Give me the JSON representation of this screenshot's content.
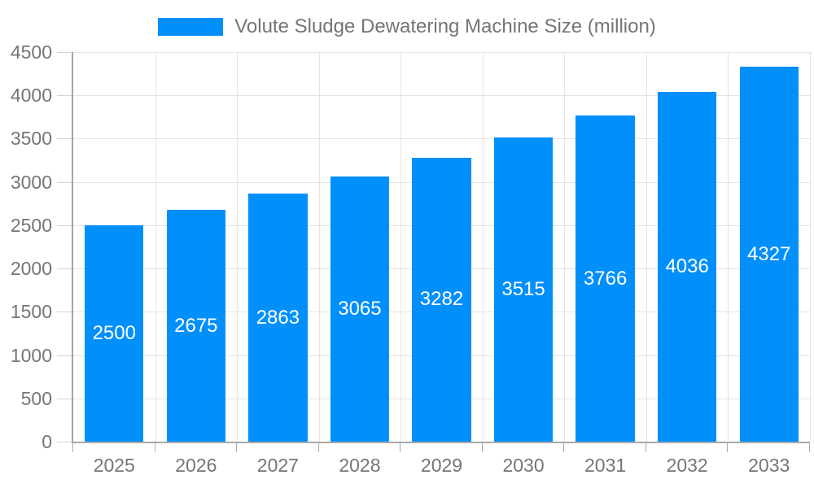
{
  "legend": {
    "label": "Volute Sludge Dewatering Machine Size (million)"
  },
  "colors": {
    "bar": "#008FFB",
    "axis": "#a3a3a3",
    "grid": "#e4e4e4",
    "tick_label": "#757575",
    "value_label": "#ffffff",
    "background": "#ffffff"
  },
  "chart_data": {
    "type": "bar",
    "title": "Volute Sludge Dewatering Machine Size (million)",
    "categories": [
      "2025",
      "2026",
      "2027",
      "2028",
      "2029",
      "2030",
      "2031",
      "2032",
      "2033"
    ],
    "series": [
      {
        "name": "Volute Sludge Dewatering Machine Size (million)",
        "values": [
          2500,
          2675,
          2863,
          3065,
          3282,
          3515,
          3766,
          4036,
          4327
        ]
      }
    ],
    "xlabel": "",
    "ylabel": "",
    "ylim": [
      0,
      4500
    ],
    "ytick_step": 500,
    "yticks": [
      0,
      500,
      1000,
      1500,
      2000,
      2500,
      3000,
      3500,
      4000,
      4500
    ],
    "grid": true,
    "legend_position": "top",
    "value_label_position": "center-inside"
  }
}
